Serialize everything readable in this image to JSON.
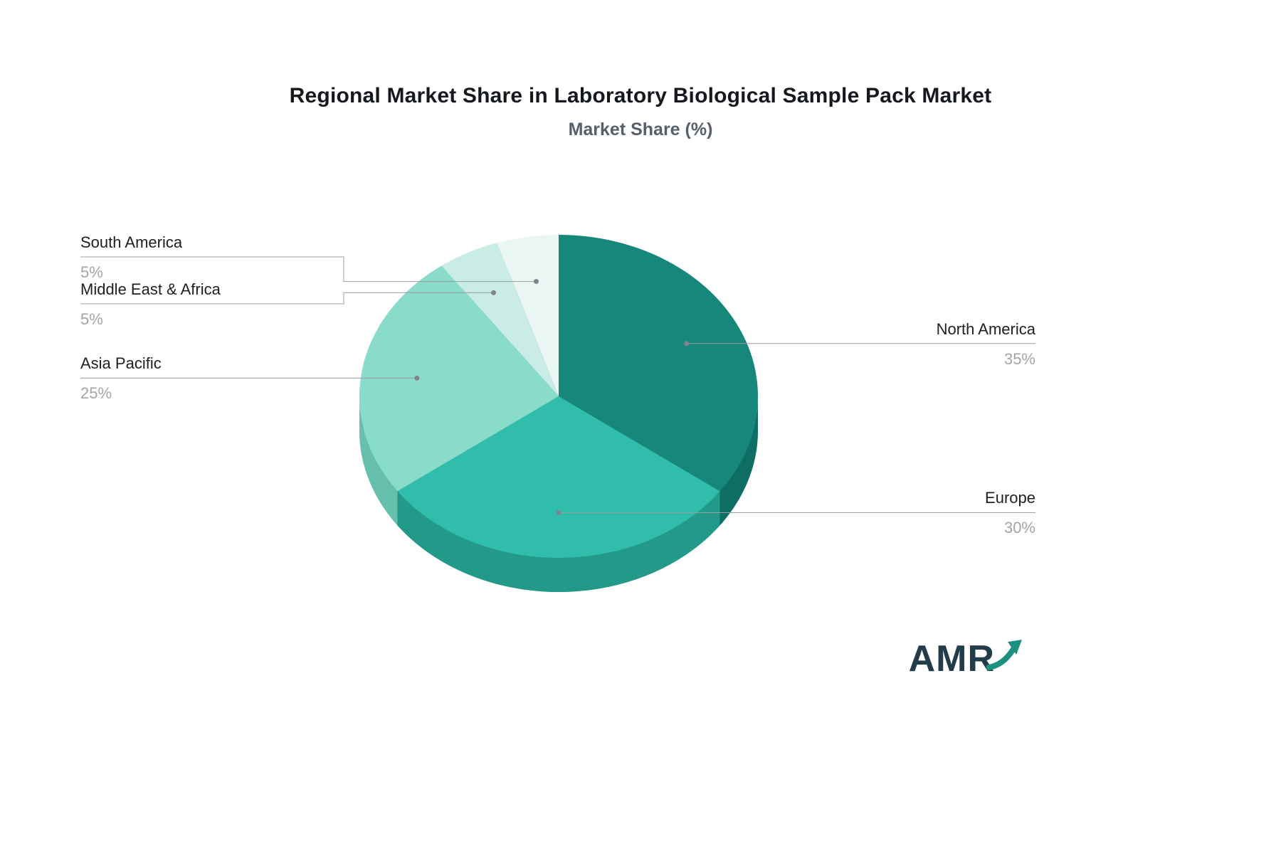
{
  "title": "Regional Market Share in Laboratory Biological Sample Pack Market",
  "subtitle": "Market Share (%)",
  "branding": {
    "logo_text": "AMR",
    "logo_color": "#223c4a",
    "arrow_color": "#1d8f7e"
  },
  "chart_data": {
    "type": "pie",
    "style": "3d",
    "title": "Regional Market Share in Laboratory Biological Sample Pack Market",
    "subtitle": "Market Share (%)",
    "unit": "%",
    "start_angle_deg": 0,
    "direction": "clockwise",
    "legend": "none",
    "labels": [
      "North America",
      "Europe",
      "Asia Pacific",
      "Middle East & Africa",
      "South America"
    ],
    "values": [
      35,
      30,
      25,
      5,
      5
    ],
    "value_labels": [
      "35%",
      "30%",
      "25%",
      "5%",
      "5%"
    ],
    "colors": [
      "#17877b",
      "#30bdac",
      "#89dbca",
      "#c9ece4",
      "#eaf6f3"
    ],
    "side_colors": [
      "#0f6e63",
      "#23998a",
      "#67c0ae",
      "#9ed8cb",
      "#c9e8e0"
    ],
    "base_color": "#1b8478",
    "label_text_color": "#1f1f1f",
    "label_value_color": "#a1a5a9",
    "connector_color": "#999da1",
    "dot_color": "#7f8488"
  }
}
